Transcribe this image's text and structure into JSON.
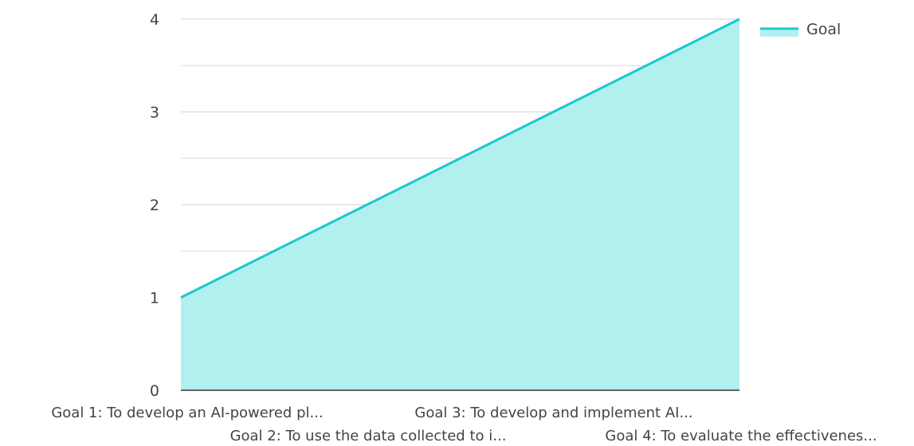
{
  "chart_data": {
    "type": "area",
    "categories": [
      "Goal 1: To develop an AI-powered pl...",
      "Goal 2: To use the data collected to i...",
      "Goal 3: To develop and implement AI...",
      "Goal 4: To evaluate the effectivenes..."
    ],
    "series": [
      {
        "name": "Goal",
        "values": [
          1,
          2,
          3,
          4
        ]
      }
    ],
    "ylim": [
      0,
      4
    ],
    "yticks": [
      "0",
      "1",
      "2",
      "3",
      "4"
    ],
    "grid": true,
    "legend_position": "top-right",
    "colors": {
      "line": "#1cc8cc",
      "fill": "#b2efef",
      "grid": "#d9d9d9",
      "axis": "#333333"
    }
  }
}
